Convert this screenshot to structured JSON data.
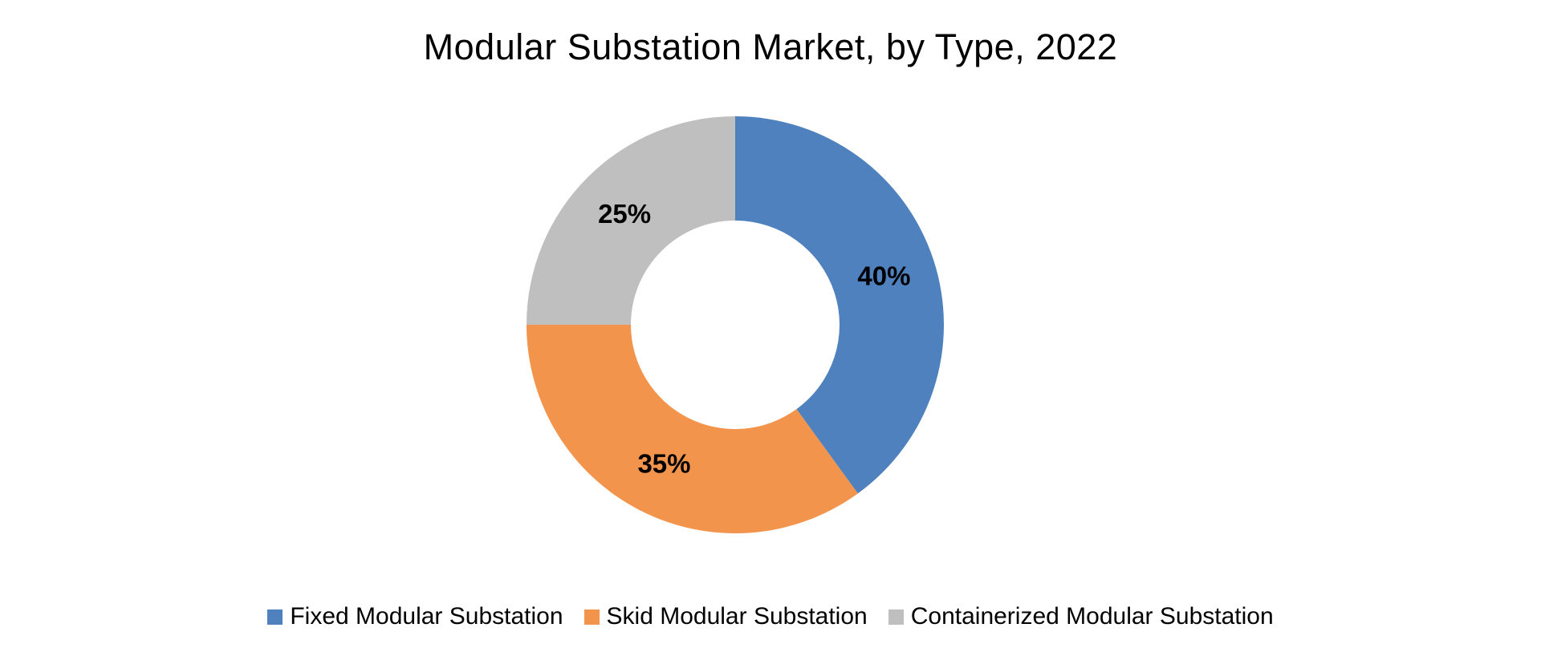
{
  "page": {
    "background_color": "#FFFFFF"
  },
  "chart_data": {
    "type": "pie",
    "subtype": "donut",
    "title": "Modular Substation Market, by Type, 2022",
    "categories": [
      "Fixed Modular Substation",
      "Skid Modular Substation",
      "Containerized Modular Substation"
    ],
    "values": [
      40,
      35,
      25
    ],
    "data_labels": [
      "40%",
      "35%",
      "25%"
    ],
    "slice_colors": [
      "#4E81BD",
      "#F2944B",
      "#BFBFBF"
    ],
    "start_angle_deg": 0,
    "direction": "clockwise",
    "hole_ratio": 0.5,
    "legend_position": "bottom",
    "title_color": "#000000",
    "data_label_color": "#000000",
    "legend_text_color": "#000000"
  }
}
